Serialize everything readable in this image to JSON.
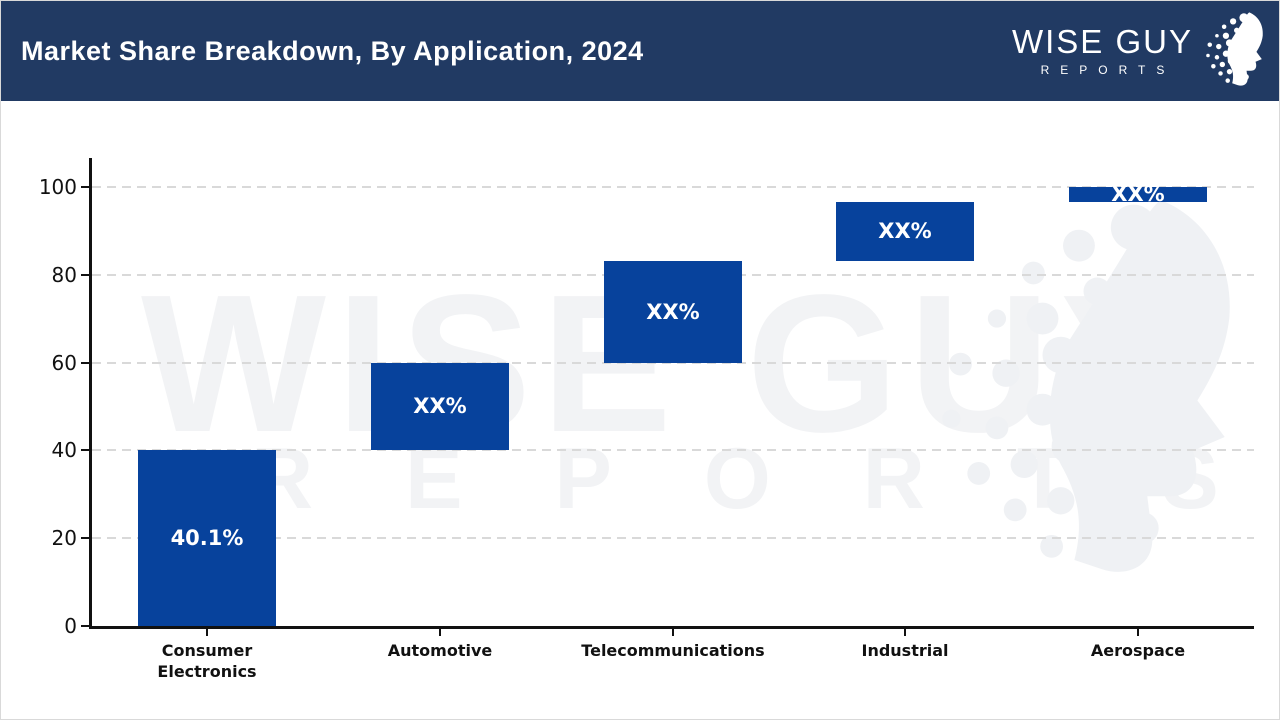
{
  "header": {
    "title": "Market Share Breakdown, By Application, 2024",
    "bg_color": "#213a63",
    "logo": {
      "line1": "WISE GUY",
      "line2": "REPORTS",
      "icon": "face-profile-dots-icon"
    }
  },
  "watermark": {
    "line1": "WISE GUY",
    "line2": "REPORTS"
  },
  "chart_data": {
    "type": "bar",
    "subtype": "waterfall",
    "title": "Market Share Breakdown, By Application, 2024",
    "categories": [
      "Consumer Electronics",
      "Automotive",
      "Telecommunications",
      "Industrial",
      "Aerospace"
    ],
    "tick_labels": [
      "Consumer\nElectronics",
      "Automotive",
      "Telecommunications",
      "Industrial",
      "Aerospace"
    ],
    "segments": [
      {
        "category": "Consumer Electronics",
        "start": 0,
        "end": 40.1,
        "label": "40.1%"
      },
      {
        "category": "Automotive",
        "start": 40.1,
        "end": 60,
        "label": "XX%"
      },
      {
        "category": "Telecommunications",
        "start": 60,
        "end": 83.2,
        "label": "XX%"
      },
      {
        "category": "Industrial",
        "start": 83.2,
        "end": 96.6,
        "label": "XX%"
      },
      {
        "category": "Aerospace",
        "start": 96.6,
        "end": 100,
        "label": "XX%"
      }
    ],
    "xlabel": "",
    "ylabel": "",
    "ylim": [
      0,
      100
    ],
    "yticks": [
      0,
      20,
      40,
      60,
      80,
      100
    ],
    "grid": {
      "horizontal": true,
      "style": "dashed",
      "color": "#d9d9d9"
    },
    "legend": "none",
    "bar_color": "#07429c",
    "bar_label_color": "#ffffff"
  }
}
